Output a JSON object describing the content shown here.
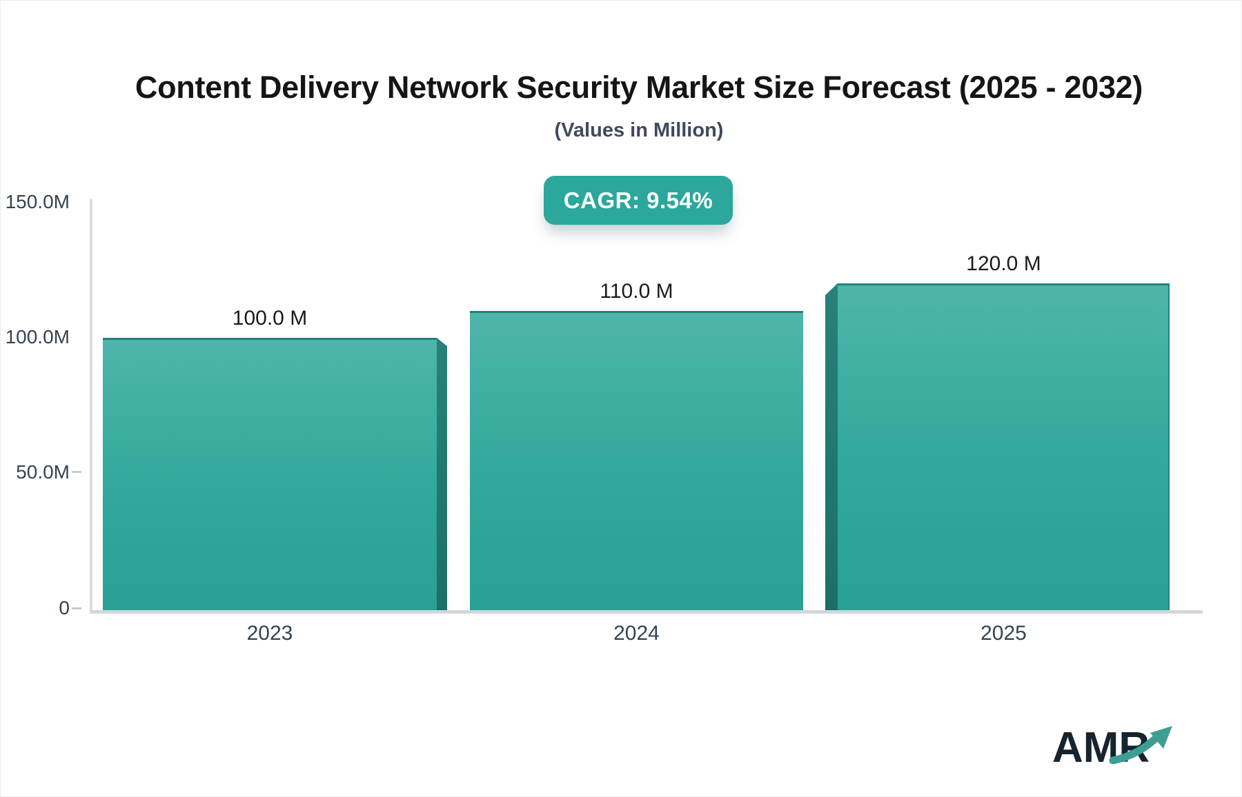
{
  "title": "Content Delivery Network Security Market Size Forecast (2025 - 2032)",
  "subtitle": "(Values in Million)",
  "badge": {
    "label": "CAGR: 9.54%"
  },
  "logo": {
    "text": "AMR",
    "arrow_icon": "growth-arrow-icon"
  },
  "colors": {
    "title_text": "#151515",
    "subtitle_text": "#3F4A5C",
    "badge_bg": "#2BA79B",
    "bar_top": "#4FB5AB",
    "bar_mid": "#31A89B",
    "bar_bottom": "#28A093",
    "bar_border": "#1E837A",
    "bar_edge": "#26827A",
    "bar_edge_dark": "#1D6F66",
    "axis_line": "#D9DCDF",
    "tick_dash": "#C6CBD0",
    "axis_label_text": "#36424F",
    "value_label_text": "#1B1B1D",
    "logo_text": "#162430",
    "logo_arrow": "#3E9E93"
  },
  "chart_data": {
    "type": "bar",
    "categories": [
      "2023",
      "2024",
      "2025"
    ],
    "values": [
      100,
      110,
      120
    ],
    "value_labels": [
      "100.0 M",
      "110.0 M",
      "120.0 M"
    ],
    "unit": "Million",
    "title": "Content Delivery Network Security Market Size Forecast (2025 - 2032)",
    "xlabel": "",
    "ylabel": "",
    "ylim": [
      0,
      150
    ],
    "yticks": [
      "150.0M",
      "100.0M",
      "50.0M",
      "0"
    ],
    "ytick_values": [
      150,
      100,
      50,
      0
    ],
    "grid": false,
    "legend": false
  }
}
